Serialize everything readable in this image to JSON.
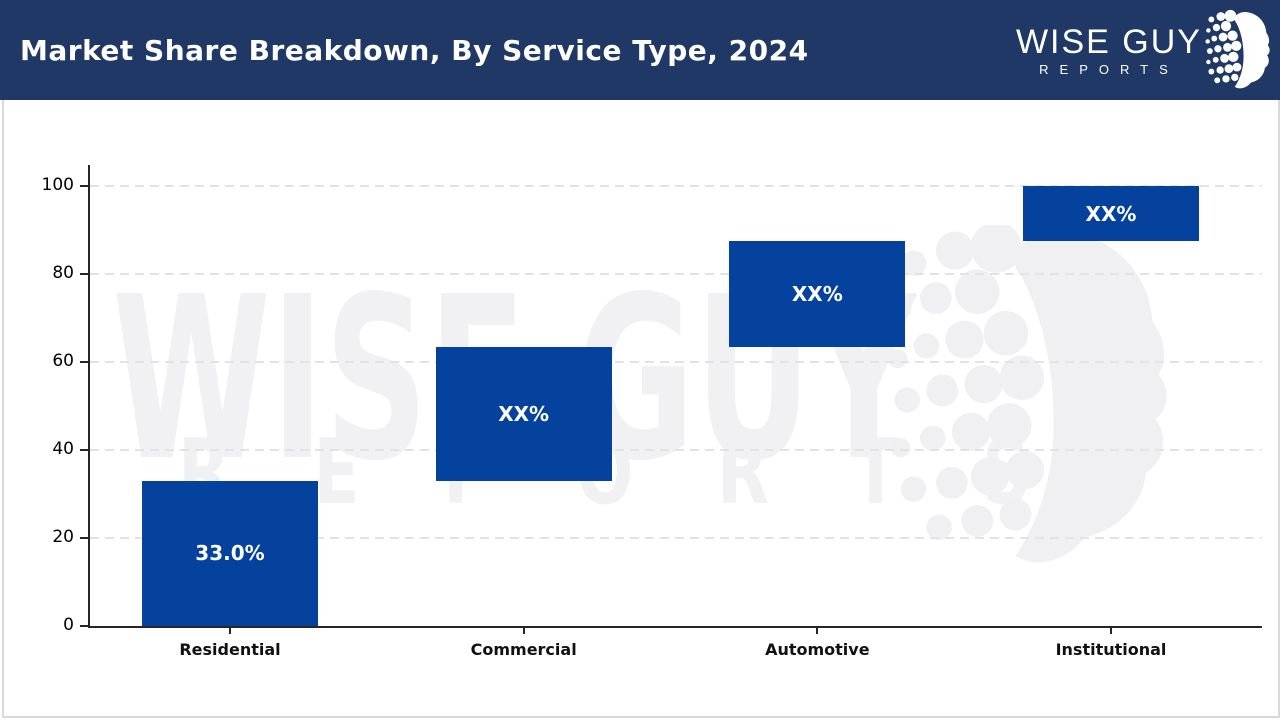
{
  "header": {
    "title": "Market Share Breakdown, By Service Type, 2024",
    "background_color": "#203865",
    "logo": {
      "line1": "WISE GUY",
      "line2": "REPORTS"
    }
  },
  "watermark": {
    "line1": "WISE GUY",
    "line2": "R E P O R T S"
  },
  "chart_data": {
    "type": "bar",
    "subtype": "floating-segment-waterfall",
    "title": "Market Share Breakdown, By Service Type, 2024",
    "categories": [
      "Residential",
      "Commercial",
      "Automotive",
      "Institutional"
    ],
    "segments": [
      {
        "category": "Residential",
        "start": 0,
        "end": 33.0,
        "label": "33.0%"
      },
      {
        "category": "Commercial",
        "start": 33.0,
        "end": 63.3,
        "label": "XX%"
      },
      {
        "category": "Automotive",
        "start": 63.3,
        "end": 87.5,
        "label": "XX%"
      },
      {
        "category": "Institutional",
        "start": 87.5,
        "end": 100.0,
        "label": "XX%"
      }
    ],
    "yticks": [
      0,
      20,
      40,
      60,
      80,
      100
    ],
    "ylim": [
      0,
      105
    ],
    "xlabel": "",
    "ylabel": "",
    "grid": "horizontal-dashed",
    "legend": "none",
    "bar_color": "#05429d",
    "bar_label_color": "#ffffff",
    "axis_color": "#262626"
  }
}
